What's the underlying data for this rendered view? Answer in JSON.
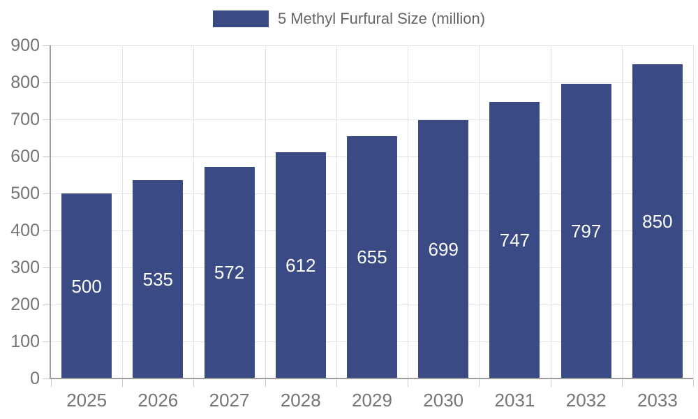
{
  "chart_data": {
    "type": "bar",
    "title": "5 Methyl Furfural Size (million)",
    "categories": [
      "2025",
      "2026",
      "2027",
      "2028",
      "2029",
      "2030",
      "2031",
      "2032",
      "2033"
    ],
    "values": [
      500,
      535,
      572,
      612,
      655,
      699,
      747,
      797,
      850
    ],
    "xlabel": "",
    "ylabel": "",
    "ylim": [
      0,
      900
    ],
    "ytick_step": 100,
    "grid": true,
    "legend_position": "top-center",
    "colors": {
      "bar": "#3A4A84",
      "bar_label": "#FFFFFF",
      "axis": "#9E9E9E",
      "grid": "#E3E3E3",
      "tick": "#C9C9C9",
      "tick_text": "#757575",
      "legend_text": "#666666",
      "background": "#FFFFFF"
    }
  }
}
